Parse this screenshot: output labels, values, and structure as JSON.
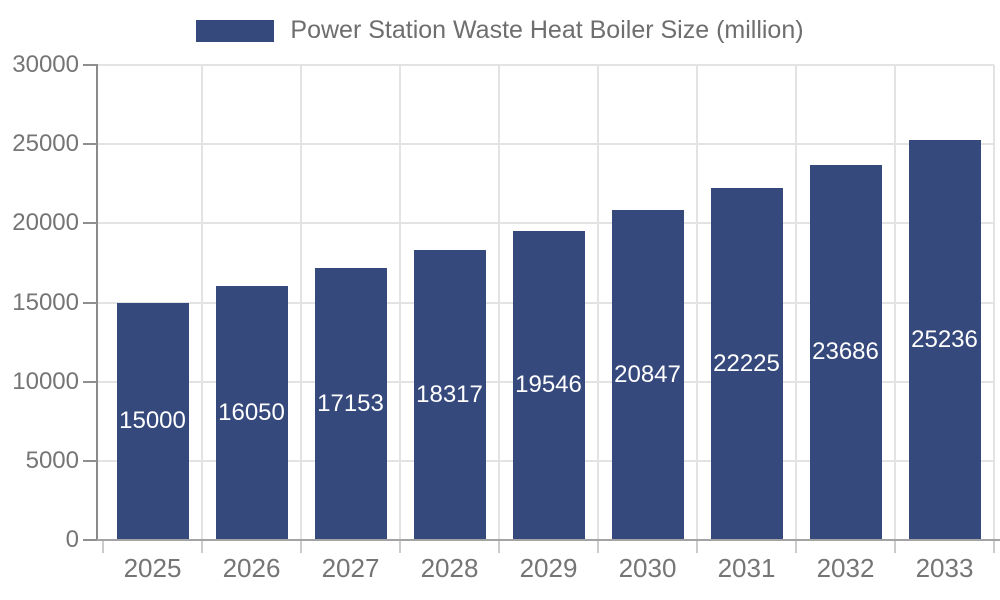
{
  "chart_data": {
    "type": "bar",
    "title": "",
    "categories": [
      "2025",
      "2026",
      "2027",
      "2028",
      "2029",
      "2030",
      "2031",
      "2032",
      "2033"
    ],
    "series": [
      {
        "name": "Power Station Waste Heat Boiler Size (million)",
        "values": [
          15000,
          16050,
          17153,
          18317,
          19546,
          20847,
          22225,
          23686,
          25236
        ]
      }
    ],
    "xlabel": "",
    "ylabel": "",
    "ylim": [
      0,
      30000
    ],
    "yticks": [
      0,
      5000,
      10000,
      15000,
      20000,
      25000,
      30000
    ],
    "grid": true,
    "legend_position": "top-center",
    "value_labels": "inside-center-white",
    "colors": {
      "bar": "#36497D",
      "value_label": "#ffffff",
      "axis_text": "#757575",
      "legend_text": "#6e6e6e",
      "gridline": "#e3e3e3",
      "y_axis_line": "#8a8a8a",
      "x_axis_line": "#a3a3a3",
      "y_tick": "#8f8f8f",
      "below_axis_tick": "#cccccc",
      "background": "#ffffff"
    }
  }
}
